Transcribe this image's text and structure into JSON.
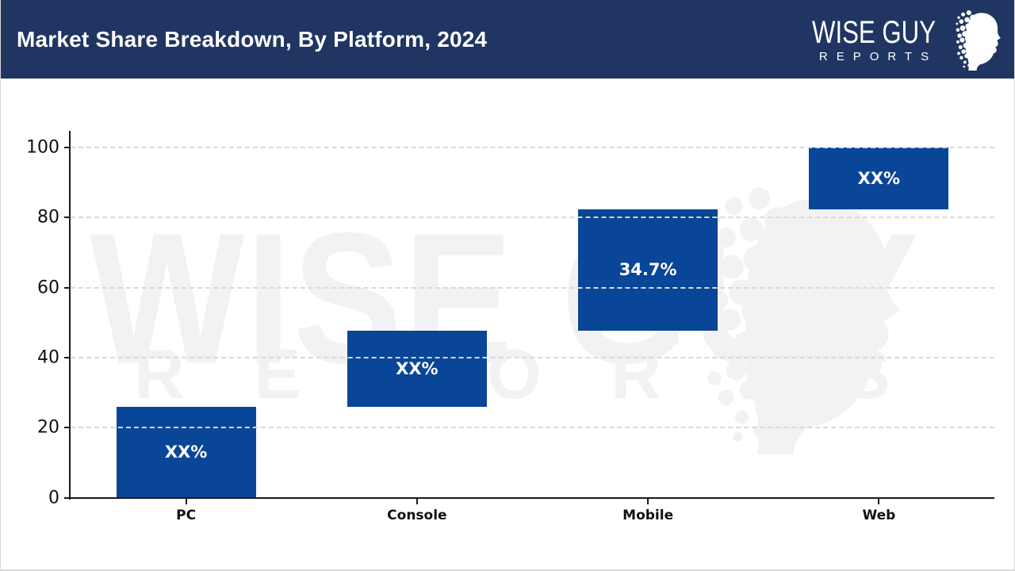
{
  "header": {
    "title": "Market Share Breakdown, By Platform, 2024",
    "logo": {
      "line1": "WISE GUY",
      "line2": "REPORTS"
    }
  },
  "watermark": {
    "line1": "WISE GUY",
    "line2": "REPORTS"
  },
  "colors": {
    "header_bg": "#203562",
    "bar": "#0a4697",
    "watermark": "#f2f2f4",
    "gridline": "#d9d9d9",
    "axis": "#1a1a1a"
  },
  "chart_data": {
    "type": "bar",
    "subtype": "waterfall",
    "title": "Market Share Breakdown, By Platform, 2024",
    "xlabel": "",
    "ylabel": "",
    "categories": [
      "PC",
      "Console",
      "Mobile",
      "Web"
    ],
    "bars": [
      {
        "category": "PC",
        "start": 0,
        "end": 26.0,
        "value": 26.0,
        "label": "XX%"
      },
      {
        "category": "Console",
        "start": 26.0,
        "end": 47.7,
        "value": 21.7,
        "label": "XX%"
      },
      {
        "category": "Mobile",
        "start": 47.7,
        "end": 82.4,
        "value": 34.7,
        "label": "34.7%"
      },
      {
        "category": "Web",
        "start": 82.4,
        "end": 100.0,
        "value": 17.6,
        "label": "XX%"
      }
    ],
    "yticks": [
      0,
      20,
      40,
      60,
      80,
      100
    ],
    "ylim": [
      0,
      104
    ],
    "grid": "horizontal-dashed",
    "legend": "none",
    "bar_color": "#0a4697"
  }
}
